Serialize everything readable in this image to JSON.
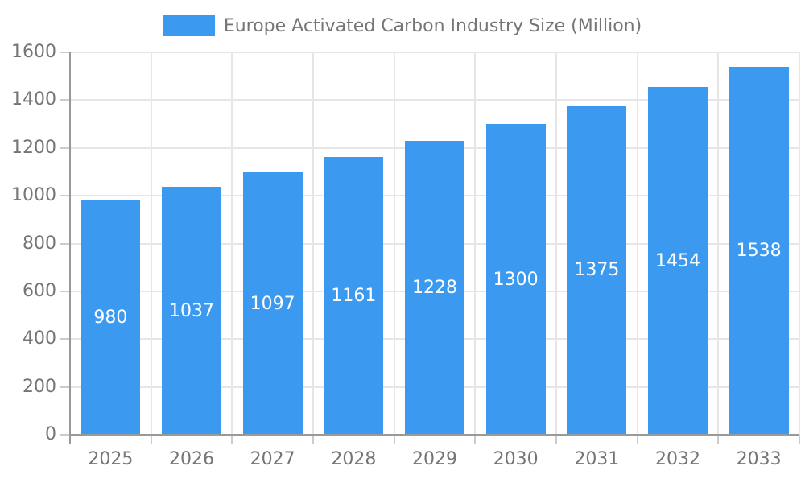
{
  "chart_data": {
    "type": "bar",
    "title": "Europe Activated Carbon Industry Size (Million)",
    "legend": {
      "label": "Europe Activated Carbon Industry Size (Million)",
      "position": "top-center"
    },
    "categories": [
      "2025",
      "2026",
      "2027",
      "2028",
      "2029",
      "2030",
      "2031",
      "2032",
      "2033"
    ],
    "series": [
      {
        "name": "Europe Activated Carbon Industry Size (Million)",
        "values": [
          980,
          1037,
          1097,
          1161,
          1228,
          1300,
          1375,
          1454,
          1538
        ]
      }
    ],
    "xlabel": "",
    "ylabel": "",
    "ylim": [
      0,
      1600
    ],
    "ytick_step": 200,
    "yticks": [
      0,
      200,
      400,
      600,
      800,
      1000,
      1200,
      1400,
      1600
    ],
    "grid": "both",
    "value_labels": "inside-center",
    "colors": {
      "bar": "#3B9AF0",
      "value_label": "#ffffff",
      "axis_line": "#999999",
      "tick_mark": "#cccccc",
      "gridline": "#e6e6e6",
      "axis_label": "#757575",
      "legend_text": "#757575",
      "background": "#ffffff"
    }
  }
}
